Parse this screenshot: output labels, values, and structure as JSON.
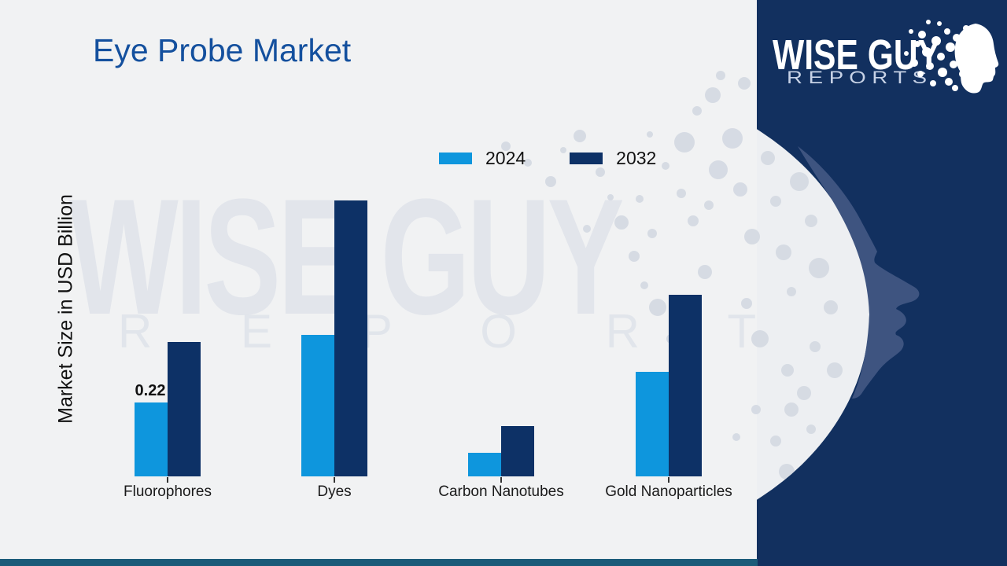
{
  "page": {
    "title": "Eye Probe Market",
    "background_color": "#f1f2f3",
    "title_color": "#14509e",
    "bottom_strip_color": "#1b5b79"
  },
  "watermark": {
    "line1": "WISE GUY",
    "line2": "R E P O R T S"
  },
  "brand": {
    "name": "WISE GUY",
    "sub": "R E P O R T S",
    "panel_color": "#12305f",
    "face_color": "#3e5480",
    "logo_text_color": "#ffffff",
    "logo_sub_color": "#c7d2e6"
  },
  "chart_data": {
    "type": "bar",
    "title": "Eye Probe Market",
    "xlabel": "",
    "ylabel": "Market Size in USD Billion",
    "categories": [
      "Fluorophores",
      "Dyes",
      "Carbon Nanotubes",
      "Gold Nanoparticles"
    ],
    "series": [
      {
        "name": "2024",
        "color": "#0e96dd",
        "values": [
          0.22,
          0.42,
          0.07,
          0.31
        ],
        "value_labels": [
          "0.22",
          "",
          "",
          ""
        ]
      },
      {
        "name": "2032",
        "color": "#0d3166",
        "values": [
          0.4,
          0.82,
          0.15,
          0.54
        ],
        "value_labels": [
          "",
          "",
          "",
          ""
        ]
      }
    ],
    "unit": "USD Billion",
    "legend_position": "top",
    "grid": false,
    "axis_lines_visible": false,
    "ylim": [
      0,
      0.9
    ]
  }
}
